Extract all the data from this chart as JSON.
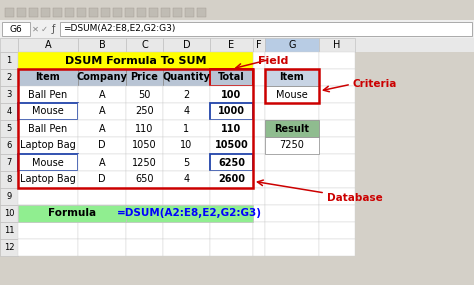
{
  "title": "DSUM Formula To SUM",
  "formula_bar_text": "=DSUM(A2:E8,E2,G2:G3)",
  "cell_ref": "G6",
  "col_letters": [
    "A",
    "B",
    "C",
    "D",
    "E",
    "F",
    "G",
    "H"
  ],
  "col_labels": [
    "Item",
    "Company",
    "Price",
    "Quantity",
    "Total"
  ],
  "rows": [
    [
      "Ball Pen",
      "A",
      "50",
      "2",
      "100"
    ],
    [
      "Mouse",
      "A",
      "250",
      "4",
      "1000"
    ],
    [
      "Ball Pen",
      "A",
      "110",
      "1",
      "110"
    ],
    [
      "Laptop Bag",
      "D",
      "1050",
      "10",
      "10500"
    ],
    [
      "Mouse",
      "A",
      "1250",
      "5",
      "6250"
    ],
    [
      "Laptop Bag",
      "D",
      "650",
      "4",
      "2600"
    ]
  ],
  "criteria_header": "Item",
  "criteria_value": "Mouse",
  "result_label": "Result",
  "result_value": "7250",
  "formula_label": "Formula",
  "formula_value": "=DSUM(A2:E8,E2,G2:G3)",
  "field_label": "Field",
  "criteria_label": "Criteria",
  "database_label": "Database",
  "toolbar_bg": "#D4D0C8",
  "sheet_bg": "#FFFFFF",
  "col_header_bg": "#E8E8E8",
  "g_col_header_bg": "#B8CCE4",
  "row_header_bg": "#E8E8E8",
  "title_bg": "#FFFF00",
  "data_header_bg": "#B8C4D4",
  "criteria_cell_bg": "#C8D4E4",
  "result_header_bg": "#8FBC8F",
  "result_cell_bg": "#FFFFFF",
  "formula_cell_bg": "#90EE90",
  "mouse_border": "#2244AA",
  "db_border": "#CC0000",
  "total_border": "#CC0000",
  "annot_color": "#CC0000"
}
